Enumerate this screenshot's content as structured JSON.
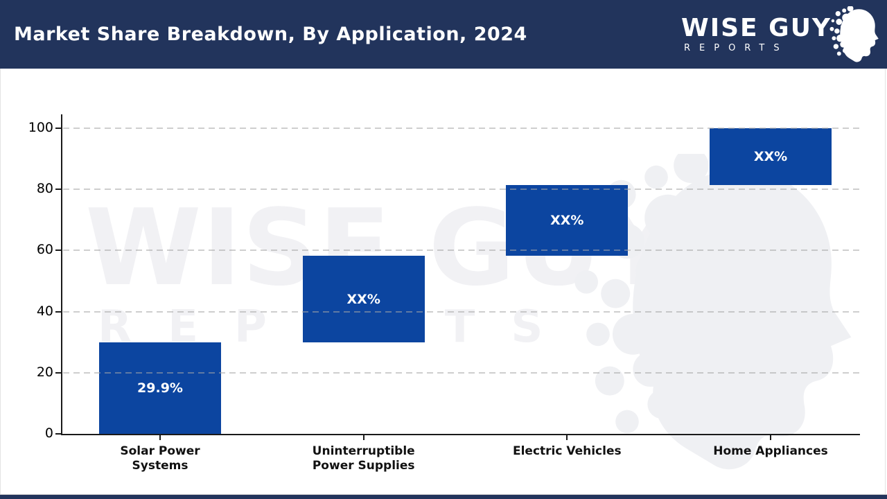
{
  "header": {
    "title": "Market Share Breakdown, By Application, 2024",
    "logo": {
      "icon": "wiseguy-face-logo",
      "line1": "WISE GUY",
      "line2": "REPORTS"
    }
  },
  "watermark": {
    "icon": "wiseguy-face-watermark",
    "line1": "WISE GUY",
    "line2": "REPORTS"
  },
  "colors": {
    "header_bg": "#22345c",
    "footer_bg": "#22345c",
    "bar": "#0c45a0",
    "bar_label": "#ffffff",
    "axis": "#1a1a1a",
    "grid": "#d7d7d7",
    "watermark": "#f1f1f4",
    "title_text": "#ffffff",
    "tick_text": "#000000"
  },
  "chart_data": {
    "type": "bar",
    "subtype": "waterfall",
    "title": "Market Share Breakdown, By Application, 2024",
    "categories": [
      "Solar Power Systems",
      "Uninterruptible Power Supplies",
      "Electric Vehicles",
      "Home Appliances"
    ],
    "segments": [
      {
        "category": "Solar Power Systems",
        "category_lines": [
          "Solar Power",
          "Systems"
        ],
        "label": "29.9%",
        "start": 0,
        "end": 29.9
      },
      {
        "category": "Uninterruptible Power Supplies",
        "category_lines": [
          "Uninterruptible",
          "Power Supplies"
        ],
        "label": "XX%",
        "start": 29.9,
        "end": 58.3
      },
      {
        "category": "Electric Vehicles",
        "category_lines": [
          "Electric Vehicles"
        ],
        "label": "XX%",
        "start": 58.3,
        "end": 81.5
      },
      {
        "category": "Home Appliances",
        "category_lines": [
          "Home Appliances"
        ],
        "label": "XX%",
        "start": 81.5,
        "end": 100
      }
    ],
    "yticks": [
      0,
      20,
      40,
      60,
      80,
      100
    ],
    "ylim": [
      0,
      105
    ],
    "xlabel": "",
    "ylabel": "",
    "grid": "horizontal-dashed",
    "legend": "none"
  }
}
